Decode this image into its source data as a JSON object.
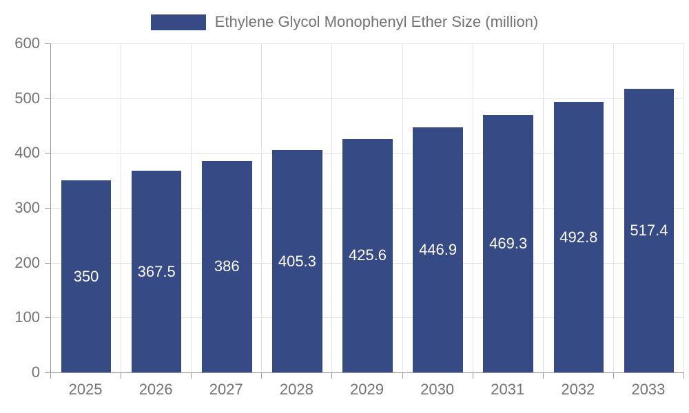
{
  "legend": {
    "label": "Ethylene Glycol Monophenyl Ether Size (million)",
    "swatch_color": "#364A85"
  },
  "chart_data": {
    "type": "bar",
    "title": "Ethylene Glycol Monophenyl Ether Size (million)",
    "categories": [
      "2025",
      "2026",
      "2027",
      "2028",
      "2029",
      "2030",
      "2031",
      "2032",
      "2033"
    ],
    "series": [
      {
        "name": "Ethylene Glycol Monophenyl Ether Size (million)",
        "values": [
          350,
          367.5,
          386,
          405.3,
          425.6,
          446.9,
          469.3,
          492.8,
          517.4
        ]
      }
    ],
    "value_labels": [
      "350",
      "367.5",
      "386",
      "405.3",
      "425.6",
      "446.9",
      "469.3",
      "492.8",
      "517.4"
    ],
    "xlabel": "",
    "ylabel": "",
    "ylim": [
      0,
      600
    ],
    "y_ticks": [
      0,
      100,
      200,
      300,
      400,
      500,
      600
    ],
    "grid": true,
    "legend_position": "top-center",
    "colors": {
      "bar": "#364A85",
      "bar_label": "#ffffff",
      "axis_text": "#737373",
      "grid_line": "#e3e3e3",
      "axis_line": "#9b9b9b"
    }
  }
}
